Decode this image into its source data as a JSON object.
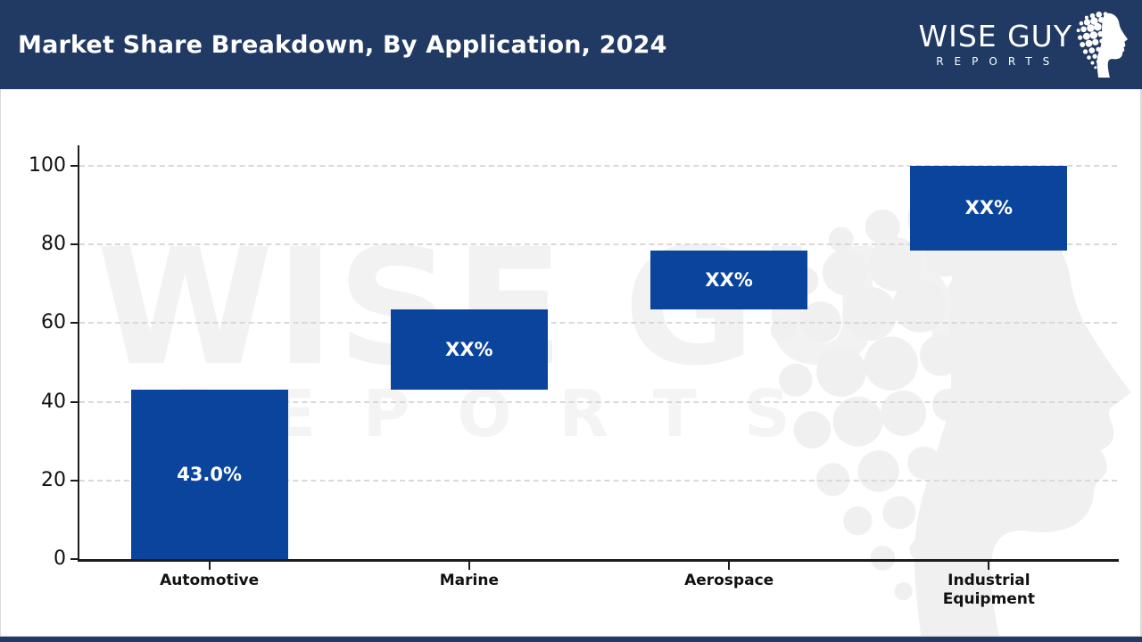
{
  "header": {
    "title": "Market Share Breakdown, By Application, 2024",
    "logo": {
      "line1": "WISE GUY",
      "line2": "REPORTS"
    }
  },
  "watermark": {
    "line1": "WISE GUY",
    "line2": "REPORTS"
  },
  "colors": {
    "header_bg": "#203a64",
    "footer_bg": "#203a64",
    "bar": "#0a449c",
    "bar_label": "#ffffff",
    "grid": "#d9d9d9",
    "axis": "#1c1c1c",
    "tick_label": "#111111",
    "watermark_text": "#f2f2f2",
    "watermark_head": "#f0f0f0"
  },
  "chart_data": {
    "type": "bar",
    "subtype": "waterfall",
    "title": "Market Share Breakdown, By Application, 2024",
    "categories": [
      "Automotive",
      "Marine",
      "Aerospace",
      "Industrial Equipment"
    ],
    "segments": [
      {
        "category": "Automotive",
        "start": 0,
        "end": 43.0,
        "label": "43.0%"
      },
      {
        "category": "Marine",
        "start": 43.0,
        "end": 63.5,
        "label": "XX%"
      },
      {
        "category": "Aerospace",
        "start": 63.5,
        "end": 78.5,
        "label": "XX%"
      },
      {
        "category": "Industrial Equipment",
        "start": 78.5,
        "end": 100,
        "label": "XX%"
      }
    ],
    "ylim": [
      0,
      100
    ],
    "yticks": [
      0,
      20,
      40,
      60,
      80,
      100
    ],
    "xlabel": "",
    "ylabel": "",
    "grid": "horizontal-dashed",
    "legend_position": "none"
  }
}
